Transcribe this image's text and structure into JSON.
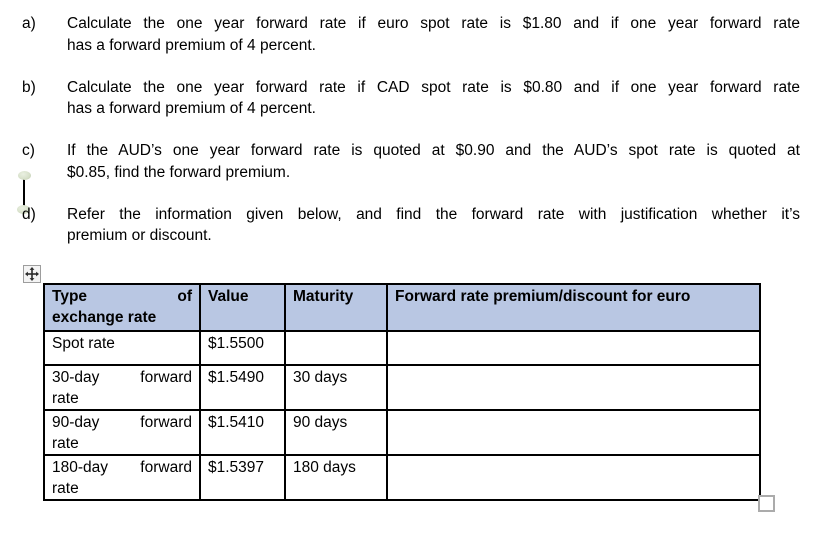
{
  "document": {
    "background": "#ffffff",
    "text_color": "#000000"
  },
  "questions": [
    {
      "label": "a)",
      "lines": [
        "Calculate the one year forward rate if euro spot rate is $1.80 and if one year forward rate",
        "has a forward premium of 4 percent."
      ]
    },
    {
      "label": "b)",
      "lines": [
        "Calculate the one year forward rate if CAD spot rate is $0.80 and if one year forward rate",
        "has a forward premium of 4 percent."
      ]
    },
    {
      "label": "c)",
      "lines": [
        "If the AUD’s one year forward rate is quoted at $0.90 and the AUD’s spot rate is quoted at",
        "$0.85, find the forward premium."
      ]
    },
    {
      "label": "d)",
      "lines": [
        "Refer the information given below, and find the forward rate with justification whether it’s",
        "premium or discount."
      ]
    }
  ],
  "table": {
    "header_bg": "#b9c7e3",
    "border_color": "#000000",
    "columns": [
      {
        "lines": [
          "Type of",
          "exchange rate"
        ]
      },
      {
        "lines": [
          "Value"
        ]
      },
      {
        "lines": [
          "Maturity"
        ]
      },
      {
        "lines": [
          "Forward rate premium/discount for euro"
        ]
      }
    ],
    "rows": [
      {
        "cells": [
          [
            "Spot rate"
          ],
          [
            "$1.5500"
          ],
          [],
          []
        ]
      },
      {
        "cells": [
          [
            "30-day forward",
            "rate"
          ],
          [
            "$1.5490"
          ],
          [
            "30 days"
          ],
          []
        ]
      },
      {
        "cells": [
          [
            "90-day forward",
            "rate"
          ],
          [
            "$1.5410"
          ],
          [
            "90 days"
          ],
          []
        ]
      },
      {
        "cells": [
          [
            "180-day forward",
            "rate"
          ],
          [
            "$1.5397"
          ],
          [
            "180 days"
          ],
          []
        ]
      }
    ]
  },
  "icons": {
    "table_move": "four-arrow-move-icon",
    "table_resize": "resize-square-handle",
    "drag_marker": "green-dot-drag-handle"
  },
  "colors": {
    "marker_dot": "#d8e1cb",
    "handle_border": "#9d9d9d"
  }
}
